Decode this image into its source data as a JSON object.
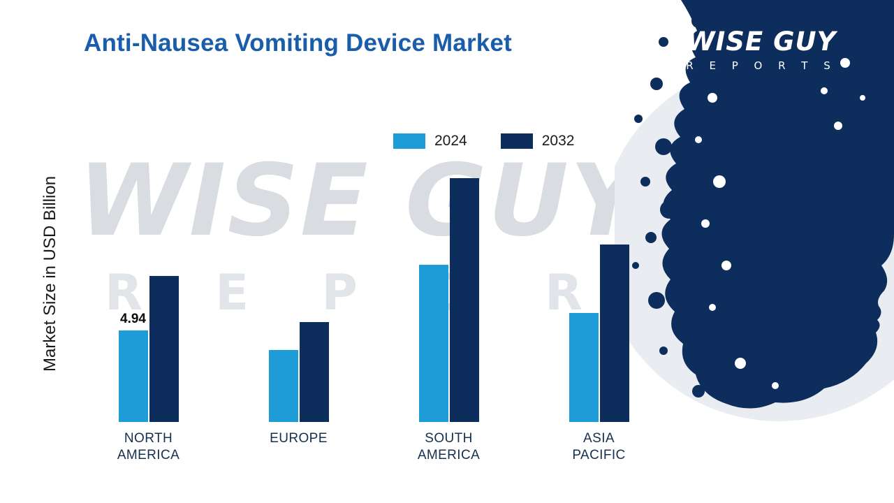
{
  "logo": {
    "line1": "WISE GUY",
    "line2": "R E P O R T S"
  },
  "watermark": {
    "line1": "WISE GUY",
    "line2": "R E P O R T S"
  },
  "colors": {
    "title": "#1a5dab",
    "bar_2024": "#1e9cd8",
    "bar_2032": "#0d2d5c",
    "watermark_gray": "#d9dde2",
    "head_navy": "#0d2d5c",
    "head_gray_circle": "#e9ecf0"
  },
  "chart_data": {
    "type": "bar",
    "title": "Anti-Nausea Vomiting Device Market",
    "ylabel": "Market Size in USD Billion",
    "categories": [
      "NORTH AMERICA",
      "EUROPE",
      "SOUTH AMERICA",
      "ASIA PACIFIC"
    ],
    "series": [
      {
        "name": "2024",
        "color": "#1e9cd8",
        "values": [
          4.94,
          3.9,
          8.5,
          5.9
        ]
      },
      {
        "name": "2032",
        "color": "#0d2d5c",
        "values": [
          7.9,
          5.4,
          13.2,
          9.6
        ]
      }
    ],
    "data_labels": [
      {
        "series": "2024",
        "category": "NORTH AMERICA",
        "text": "4.94"
      }
    ],
    "ylim": [
      0,
      14
    ],
    "grid": false,
    "legend_position": "top"
  }
}
